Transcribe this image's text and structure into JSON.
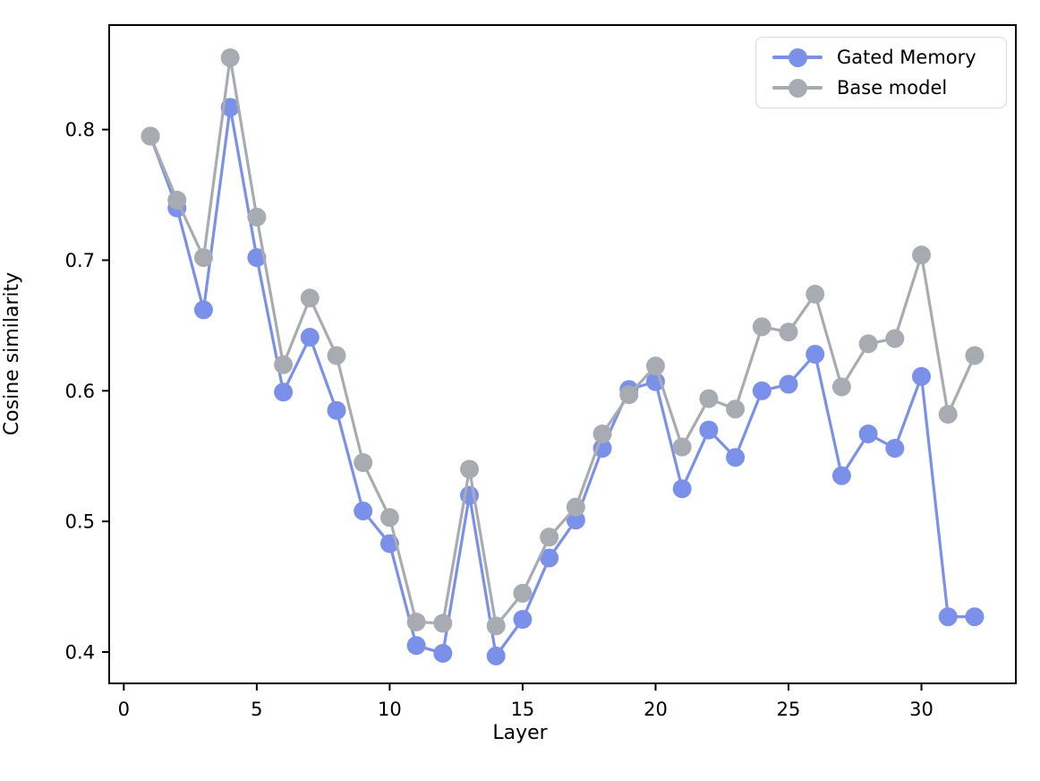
{
  "figure": {
    "background": "#ffffff",
    "text_color": "#000000"
  },
  "chart_data": {
    "type": "line",
    "xlabel": "Layer",
    "ylabel": "Cosine similarity",
    "x": [
      1,
      2,
      3,
      4,
      5,
      6,
      7,
      8,
      9,
      10,
      11,
      12,
      13,
      14,
      15,
      16,
      17,
      18,
      19,
      20,
      21,
      22,
      23,
      24,
      25,
      26,
      27,
      28,
      29,
      30,
      31,
      32
    ],
    "series": [
      {
        "name": "Gated Memory",
        "color": "#7a90e9",
        "values": [
          0.795,
          0.74,
          0.662,
          0.817,
          0.702,
          0.599,
          0.641,
          0.585,
          0.508,
          0.483,
          0.405,
          0.399,
          0.52,
          0.397,
          0.425,
          0.472,
          0.501,
          0.556,
          0.601,
          0.607,
          0.525,
          0.57,
          0.549,
          0.6,
          0.605,
          0.628,
          0.535,
          0.567,
          0.556,
          0.611,
          0.427,
          0.427
        ]
      },
      {
        "name": "Base model",
        "color": "#a8acb2",
        "values": [
          0.795,
          0.746,
          0.702,
          0.855,
          0.733,
          0.62,
          0.671,
          0.627,
          0.545,
          0.503,
          0.423,
          0.422,
          0.54,
          0.42,
          0.445,
          0.488,
          0.511,
          0.567,
          0.597,
          0.619,
          0.557,
          0.594,
          0.586,
          0.649,
          0.645,
          0.674,
          0.603,
          0.636,
          0.64,
          0.704,
          0.582,
          0.627
        ]
      }
    ],
    "xlim": [
      -0.55,
      33.55
    ],
    "ylim": [
      0.376,
      0.88
    ],
    "xticks": [
      0,
      5,
      10,
      15,
      20,
      25,
      30
    ],
    "yticks": [
      0.4,
      0.5,
      0.6,
      0.7,
      0.8
    ],
    "grid": false,
    "legend_position": "upper right",
    "marker": "circle",
    "line_width": 3.2,
    "marker_radius": 10.5
  }
}
